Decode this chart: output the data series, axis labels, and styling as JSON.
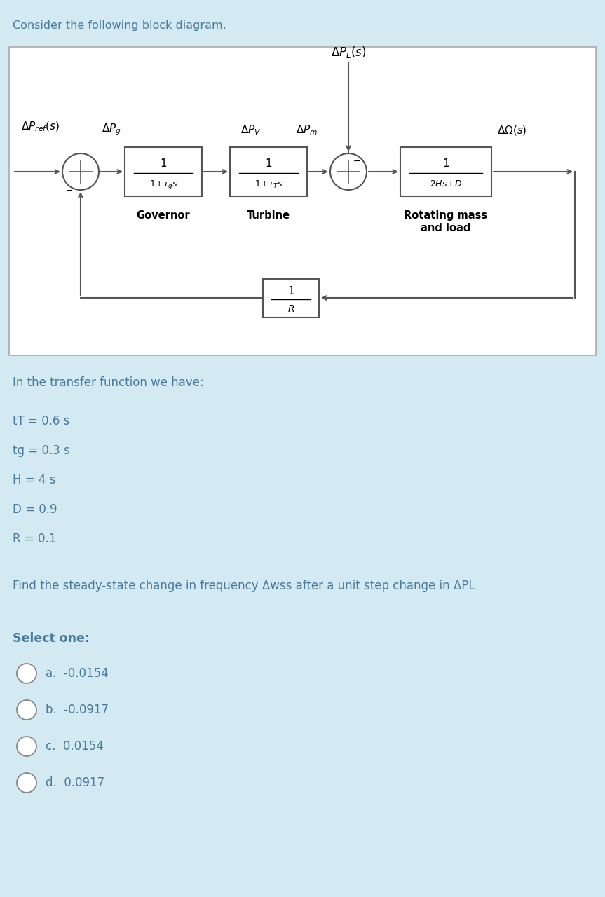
{
  "bg_color": "#d3eaf2",
  "diagram_bg": "#ffffff",
  "text_color": "#4a7a9b",
  "dark_text": "#4a7a9b",
  "title": "Consider the following block diagram.",
  "params_intro": "In the transfer function we have:",
  "params": [
    "tT = 0.6 s",
    "tg = 0.3 s",
    "H = 4 s",
    "D = 0.9",
    "R = 0.1"
  ],
  "question": "Find the steady-state change in frequency Δwss after a unit step change in ΔPL",
  "select_label": "Select one:",
  "options": [
    "a.  -0.0154",
    "b.  -0.0917",
    "c.  0.0154",
    "d.  0.0917"
  ]
}
